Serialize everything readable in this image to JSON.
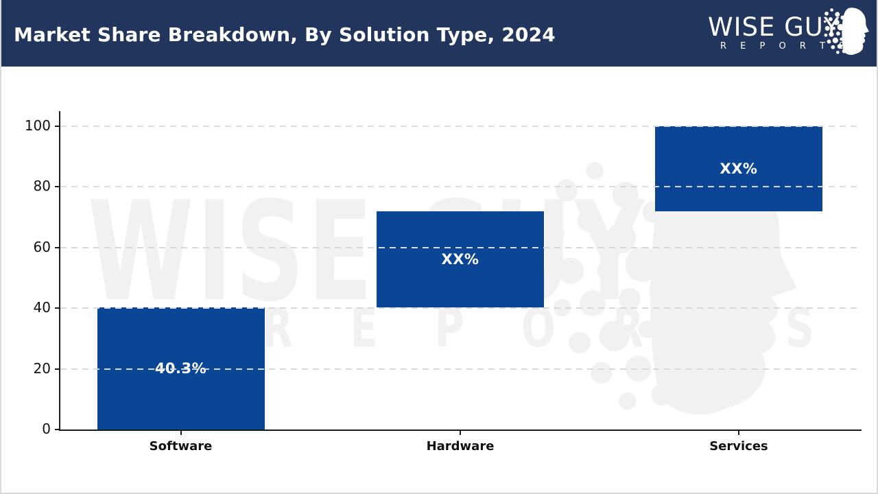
{
  "header": {
    "title": "Market Share Breakdown, By Solution Type, 2024",
    "logo": {
      "line1": "WISE GUY",
      "line2": "R E P O R T S"
    }
  },
  "watermark": {
    "line1": "WISE GUY",
    "line2": "R E P O R T S"
  },
  "colors": {
    "header_bg": "#22355c",
    "bar": "#0b4596",
    "bar_label": "#ffffff",
    "gridline": "#d8d8d8",
    "axis": "#1a1a1a",
    "watermark": "#f1f1f2",
    "frame_border": "#d9d9d9"
  },
  "chart_data": {
    "type": "bar",
    "subtype": "waterfall",
    "title": "Market Share Breakdown, By Solution Type, 2024",
    "categories": [
      "Software",
      "Hardware",
      "Services"
    ],
    "segments": [
      {
        "category": "Software",
        "start": 0,
        "end": 40.3,
        "label": "40.3%"
      },
      {
        "category": "Hardware",
        "start": 40.3,
        "end": 72,
        "label": "XX%"
      },
      {
        "category": "Services",
        "start": 72,
        "end": 100,
        "label": "XX%"
      }
    ],
    "yticks": [
      0,
      20,
      40,
      60,
      80,
      100
    ],
    "ylim": [
      0,
      105
    ],
    "xlabel": "",
    "ylabel": "",
    "grid": "horizontal-dashed, drawn over bars",
    "legend": "none",
    "bar_color": "#0b4596"
  }
}
